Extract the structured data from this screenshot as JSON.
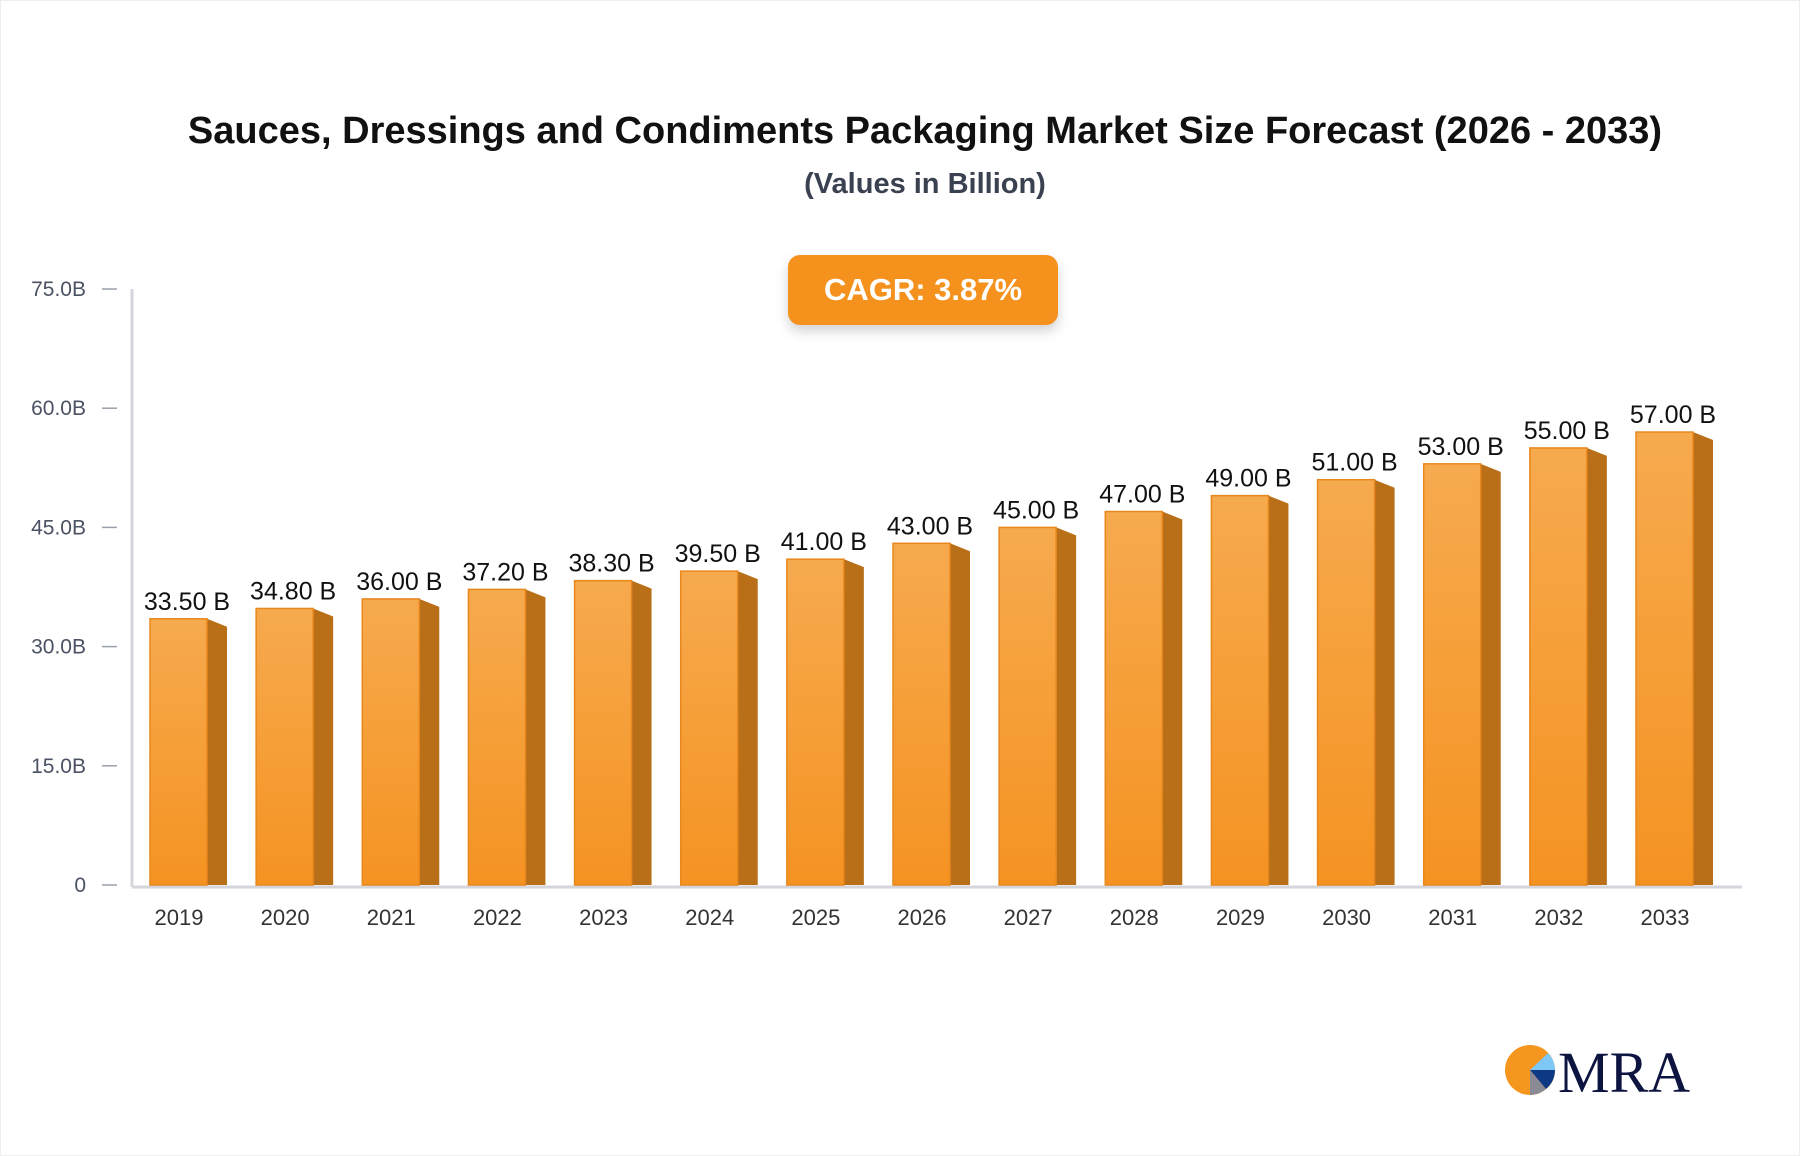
{
  "chart_data": {
    "type": "bar",
    "title": "Sauces, Dressings and Condiments Packaging Market Size Forecast (2026 - 2033)",
    "subtitle": "(Values in Billion)",
    "annotation": "CAGR: 3.87%",
    "categories": [
      "2019",
      "2020",
      "2021",
      "2022",
      "2023",
      "2024",
      "2025",
      "2026",
      "2027",
      "2028",
      "2029",
      "2030",
      "2031",
      "2032",
      "2033"
    ],
    "values": [
      33.5,
      34.8,
      36.0,
      37.2,
      38.3,
      39.5,
      41.0,
      43.0,
      45.0,
      47.0,
      49.0,
      51.0,
      53.0,
      55.0,
      57.0
    ],
    "data_labels": [
      "33.50 B",
      "34.80 B",
      "36.00 B",
      "37.20 B",
      "38.30 B",
      "39.50 B",
      "41.00 B",
      "43.00 B",
      "45.00 B",
      "47.00 B",
      "49.00 B",
      "51.00 B",
      "53.00 B",
      "55.00 B",
      "57.00 B"
    ],
    "y_ticks": [
      0,
      15,
      30,
      45,
      60,
      75
    ],
    "y_tick_labels": [
      "0",
      "15.0B",
      "30.0B",
      "45.0B",
      "60.0B",
      "75.0B"
    ],
    "ylim": [
      0,
      75
    ],
    "xlabel": "",
    "ylabel": "",
    "grid": false,
    "style": "3d-bar",
    "colors": {
      "bar_front": "#f5a040",
      "bar_side": "#b86f18",
      "badge": "#f5921e",
      "axis": "#d4d6dc"
    }
  },
  "logo": {
    "text": "MRA"
  }
}
